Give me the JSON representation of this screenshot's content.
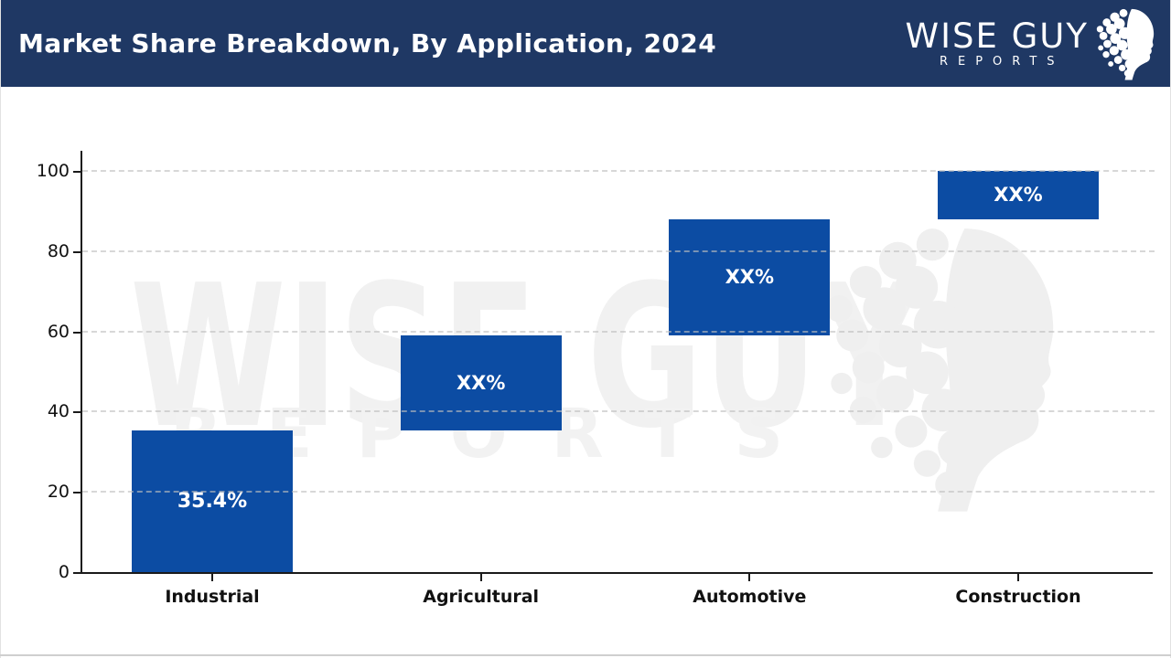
{
  "header": {
    "title": "Market Share Breakdown, By Application, 2024",
    "bg_color": "#1f3864",
    "logo": {
      "line1": "WISE GUY",
      "line2": "REPORTS"
    }
  },
  "watermark": {
    "line1": "WISE GUY",
    "line2": "REPORTS"
  },
  "chart_data": {
    "type": "bar",
    "variant": "waterfall",
    "title": "Market Share Breakdown, By Application, 2024",
    "categories": [
      "Industrial",
      "Agricultural",
      "Automotive",
      "Construction"
    ],
    "segments": [
      {
        "category": "Industrial",
        "start": 0,
        "end": 35.4,
        "label": "35.4%"
      },
      {
        "category": "Agricultural",
        "start": 35.4,
        "end": 59,
        "label": "XX%"
      },
      {
        "category": "Automotive",
        "start": 59,
        "end": 88,
        "label": "XX%"
      },
      {
        "category": "Construction",
        "start": 88,
        "end": 100,
        "label": "XX%"
      }
    ],
    "yticks": [
      0,
      20,
      40,
      60,
      80,
      100
    ],
    "ylim": [
      0,
      105
    ],
    "xlabel": "",
    "ylabel": "",
    "bar_color": "#0c4ca3",
    "bar_label_color": "#ffffff",
    "grid": "dashed-horizontal",
    "gridline_color": "#dcdcdc",
    "axis_color": "#1a1a1a",
    "legend": "none"
  }
}
